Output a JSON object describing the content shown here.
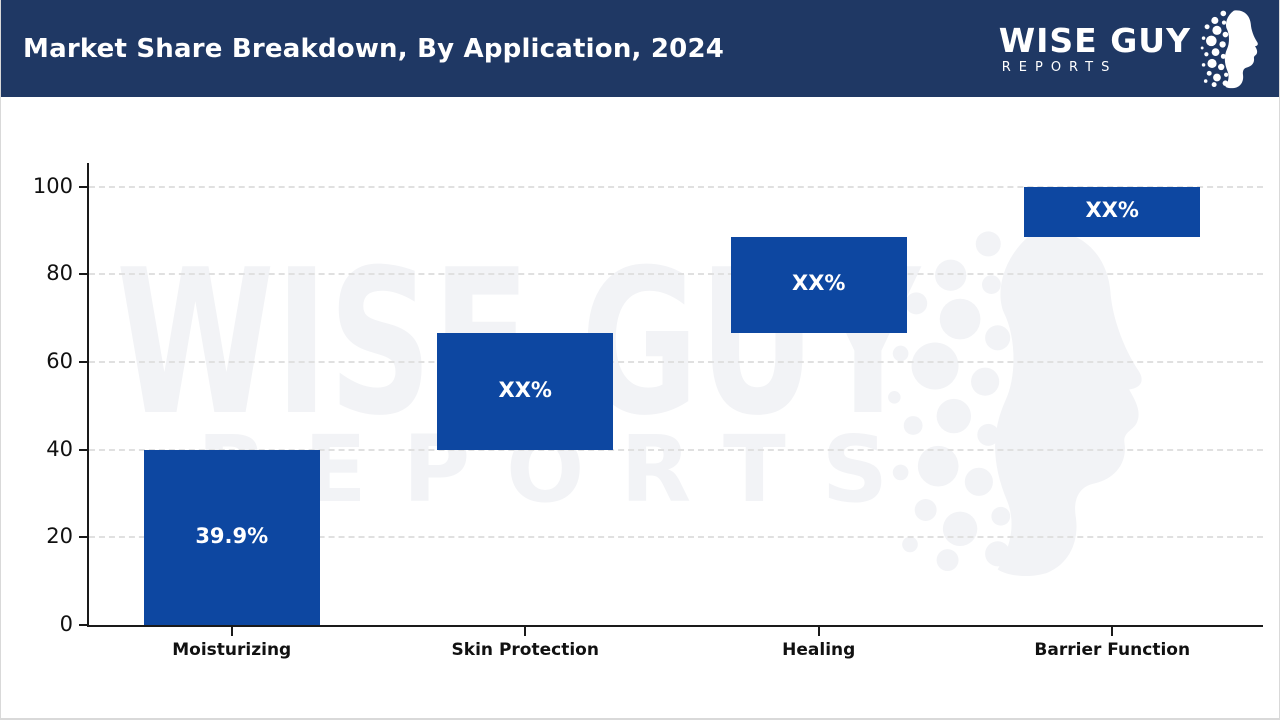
{
  "header": {
    "title": "Market Share Breakdown, By Application, 2024",
    "background_color": "#1f3864",
    "brand": {
      "line1": "WISE GUY",
      "line2": "REPORTS",
      "head_icon": "dotted-face-profile"
    }
  },
  "watermark": {
    "line1": "WISE GUY",
    "line2": "REPORTS",
    "color": "#f2f3f6"
  },
  "chart_data": {
    "type": "bar",
    "subtype": "waterfall",
    "title": "Market Share Breakdown, By Application, 2024",
    "xlabel": "",
    "ylabel": "",
    "categories": [
      "Moisturizing",
      "Skin Protection",
      "Healing",
      "Barrier Function"
    ],
    "segments": [
      {
        "category": "Moisturizing",
        "start": 0,
        "end": 39.9,
        "label": "39.9%"
      },
      {
        "category": "Skin Protection",
        "start": 39.9,
        "end": 66.6,
        "label": "XX%"
      },
      {
        "category": "Healing",
        "start": 66.6,
        "end": 88.5,
        "label": "XX%"
      },
      {
        "category": "Barrier Function",
        "start": 88.5,
        "end": 100,
        "label": "XX%"
      }
    ],
    "yticks": [
      0,
      20,
      40,
      60,
      80,
      100
    ],
    "ylim": [
      0,
      105
    ],
    "grid": "horizontal-dashed",
    "legend": "none",
    "bar_color": "#0d47a1",
    "bar_label_color": "#ffffff",
    "axis_color": "#1a1a1a",
    "grid_color": "#e0e0e0"
  }
}
